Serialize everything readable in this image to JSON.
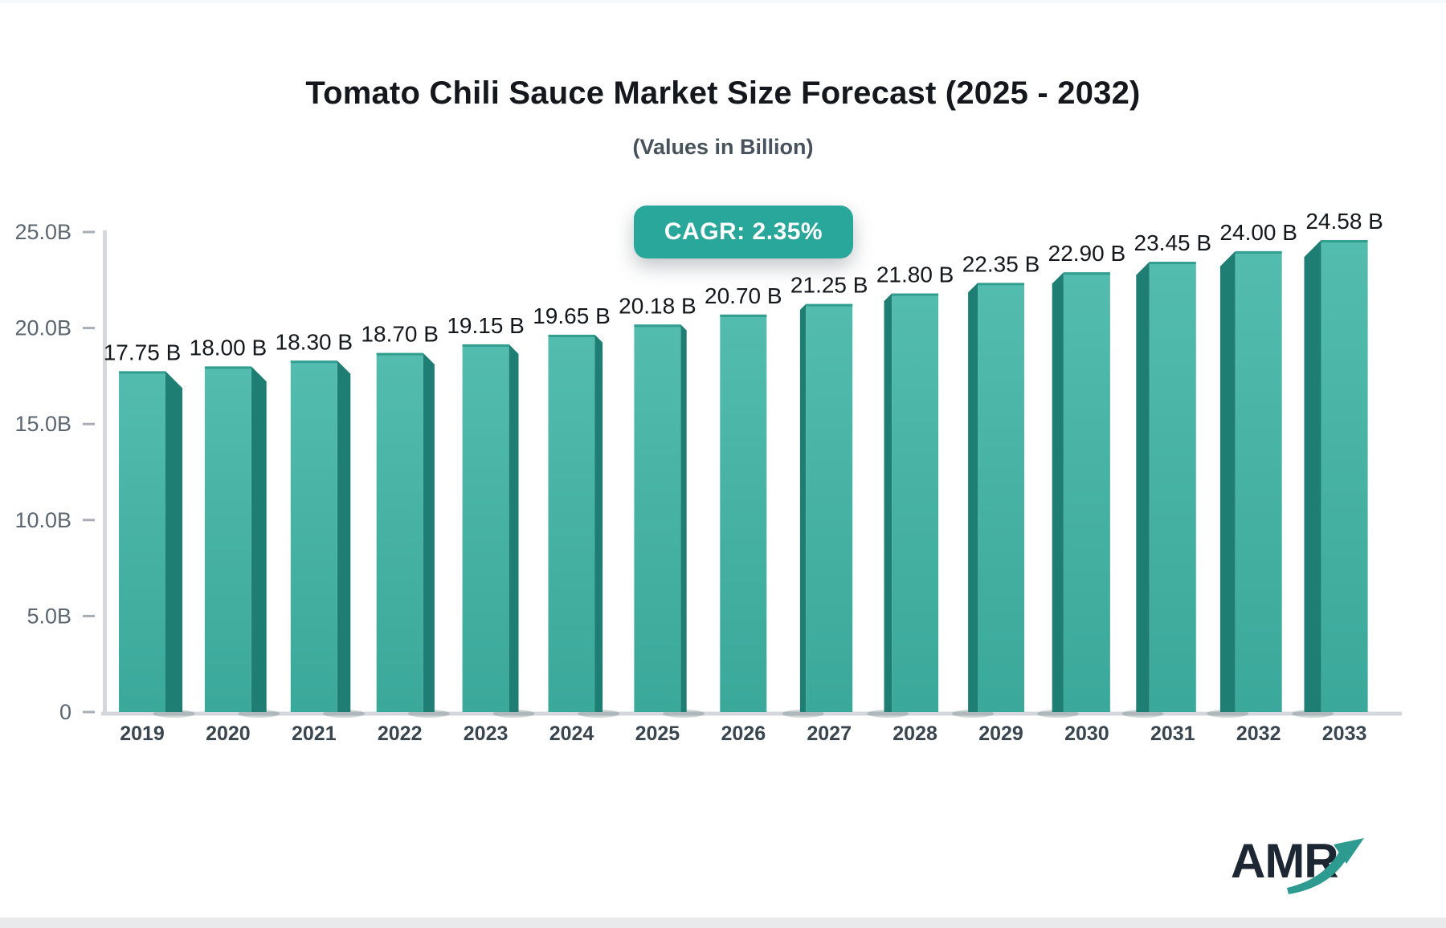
{
  "header": {
    "title": "Tomato Chili Sauce Market Size Forecast (2025 - 2032)",
    "subtitle": "(Values in Billion)"
  },
  "badge": {
    "label": "CAGR: 2.35%",
    "bg_color": "#2aa79b",
    "text_color": "#ffffff"
  },
  "logo": {
    "text": "AMR",
    "text_color": "#1c2733",
    "arrow_color": "#2d9b90"
  },
  "chart_data": {
    "type": "bar",
    "title": "Tomato Chili Sauce Market Size Forecast (2025 - 2032)",
    "subtitle": "(Values in Billion)",
    "cagr_label": "CAGR: 2.35%",
    "unit": "Billion",
    "categories": [
      "2019",
      "2020",
      "2021",
      "2022",
      "2023",
      "2024",
      "2025",
      "2026",
      "2027",
      "2028",
      "2029",
      "2030",
      "2031",
      "2032",
      "2033"
    ],
    "values": [
      17.75,
      18.0,
      18.3,
      18.7,
      19.15,
      19.65,
      20.18,
      20.7,
      21.25,
      21.8,
      22.35,
      22.9,
      23.45,
      24.0,
      24.58
    ],
    "value_labels": [
      "17.75 B",
      "18.00 B",
      "18.30 B",
      "18.70 B",
      "19.15 B",
      "19.65 B",
      "20.18 B",
      "20.70 B",
      "21.25 B",
      "21.80 B",
      "22.35 B",
      "22.90 B",
      "23.45 B",
      "24.00 B",
      "24.58 B"
    ],
    "xlabel": "",
    "ylabel": "",
    "ylim": [
      0,
      25
    ],
    "yticks": [
      {
        "label": "25.0B",
        "value": 25
      },
      {
        "label": "20.0B",
        "value": 20
      },
      {
        "label": "15.0B",
        "value": 15
      },
      {
        "label": "10.0B",
        "value": 10
      },
      {
        "label": "5.0B",
        "value": 5
      },
      {
        "label": "0",
        "value": 0
      }
    ],
    "grid": false,
    "legend": false,
    "bar_color_top": "#53bcae",
    "bar_color_bottom": "#3aa89a",
    "bar_side_color": "#1f7e73",
    "bar_top_edge_color": "#2f9a8c",
    "axis_color": "#d4d8dc",
    "tick_label_color": "#5b6670",
    "year_label_color": "#39454f",
    "value_label_color": "#14181c"
  }
}
